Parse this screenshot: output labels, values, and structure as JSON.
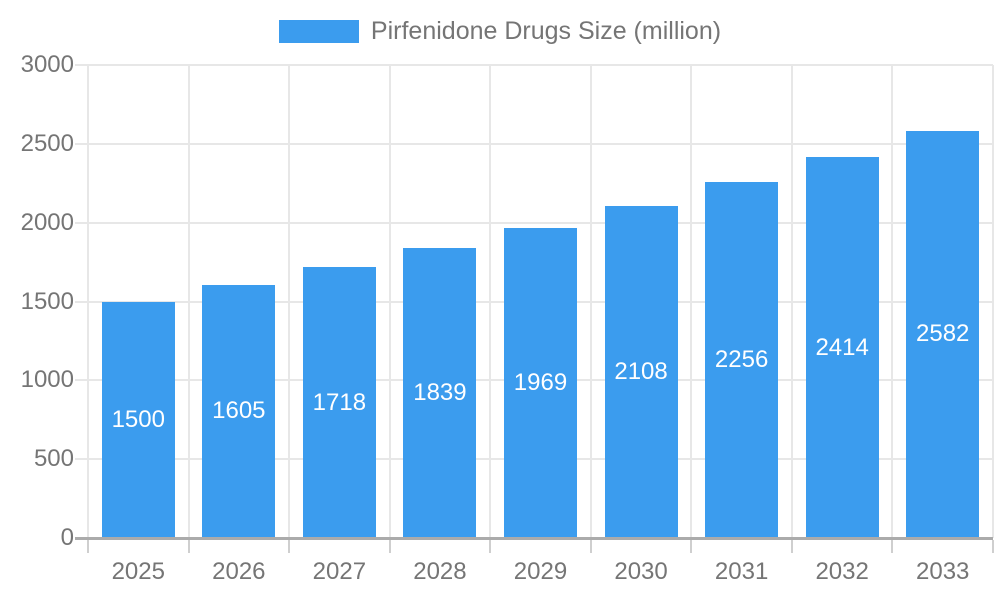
{
  "chart_data": {
    "type": "bar",
    "title": "Pirfenidone Drugs Size (million)",
    "categories": [
      "2025",
      "2026",
      "2027",
      "2028",
      "2029",
      "2030",
      "2031",
      "2032",
      "2033"
    ],
    "series": [
      {
        "name": "Pirfenidone Drugs Size (million)",
        "values": [
          1500,
          1605,
          1718,
          1839,
          1969,
          2108,
          2256,
          2414,
          2582
        ]
      }
    ],
    "xlabel": "",
    "ylabel": "",
    "ylim": [
      0,
      3000
    ],
    "yticks": [
      0,
      500,
      1000,
      1500,
      2000,
      2500,
      3000
    ],
    "grid": true,
    "legend_position": "top",
    "bar_labels_inside": true,
    "colors": {
      "bar": "#3B9CEE",
      "grid": "#E7E7E7",
      "tick": "#CFCFCF",
      "axis_line": "#ABABAB",
      "text": "#757575",
      "bar_label": "#FFFFFF",
      "background": "#FFFFFF"
    }
  }
}
